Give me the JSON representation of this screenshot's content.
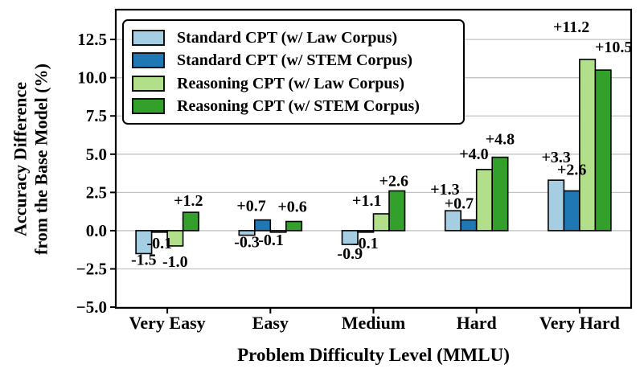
{
  "chart_data": {
    "type": "bar",
    "title": "",
    "xlabel": "Problem Difficulty Level (MMLU)",
    "ylabel_lines": [
      "Accuracy Difference",
      "from the Base Model (%)"
    ],
    "categories": [
      "Very Easy",
      "Easy",
      "Medium",
      "Hard",
      "Very Hard"
    ],
    "series": [
      {
        "name": "Standard CPT (w/ Law Corpus)",
        "color": "#a6cee3",
        "values": [
          -1.5,
          -0.3,
          -0.9,
          1.3,
          3.3
        ],
        "labels": [
          "-1.5",
          "-0.3",
          "-0.9",
          "+1.3",
          "+3.3"
        ]
      },
      {
        "name": "Standard CPT (w/ STEM Corpus)",
        "color": "#1f78b4",
        "values": [
          -0.1,
          0.7,
          -0.1,
          0.7,
          2.6
        ],
        "labels": [
          "-0.1",
          "+0.7",
          "-0.1",
          "+0.7",
          "+2.6"
        ]
      },
      {
        "name": "Reasoning CPT (w/ Law Corpus)",
        "color": "#b2df8a",
        "values": [
          -1.0,
          -0.1,
          1.1,
          4.0,
          11.2
        ],
        "labels": [
          "-1.0",
          "-0.1",
          "+1.1",
          "+4.0",
          "+11.2"
        ]
      },
      {
        "name": "Reasoning CPT (w/ STEM Corpus)",
        "color": "#33a02c",
        "values": [
          1.2,
          0.6,
          2.6,
          4.8,
          10.5
        ],
        "labels": [
          "+1.2",
          "+0.6",
          "+2.6",
          "+4.8",
          "+10.5"
        ]
      }
    ],
    "yticks": {
      "values": [
        12.5,
        10.0,
        7.5,
        5.0,
        2.5,
        0.0,
        -2.5,
        -5.0
      ],
      "labels": [
        "12.5",
        "10.0",
        "7.5",
        "5.0",
        "2.5",
        "0.0",
        "−2.5",
        "−5.0"
      ]
    },
    "ylim": [
      -5.05,
      14.45
    ],
    "grid": true,
    "legend_position": "upper left",
    "bar_edge_color": "#000000",
    "grid_color": "#c2c2c2",
    "axis_color": "#000000",
    "background": "#ffffff"
  }
}
